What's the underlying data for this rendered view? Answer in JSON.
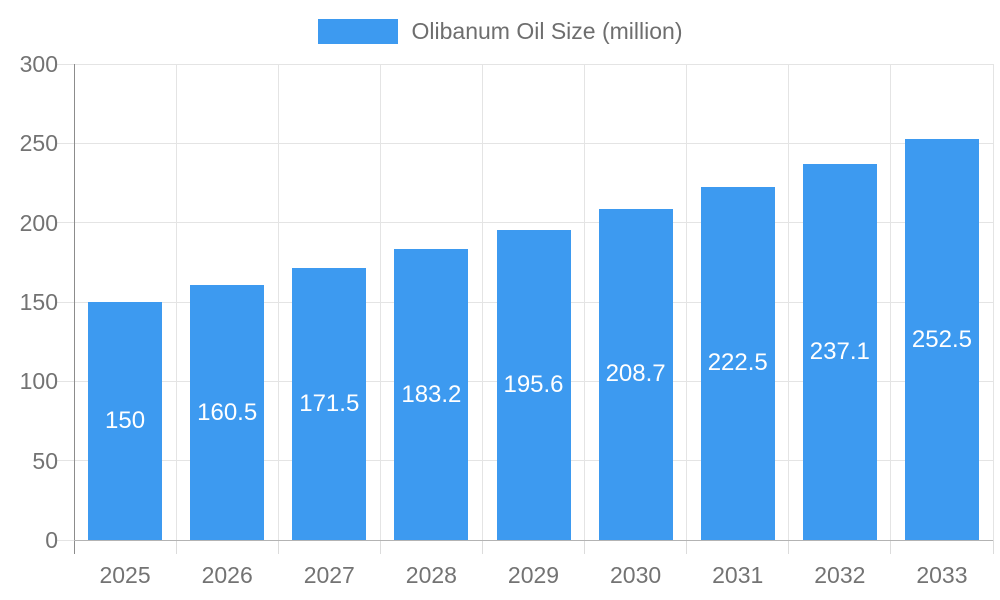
{
  "legend": {
    "label": "Olibanum Oil Size (million)"
  },
  "chart_data": {
    "type": "bar",
    "title": "",
    "xlabel": "",
    "ylabel": "",
    "legend": "Olibanum Oil Size (million)",
    "legend_position": "top",
    "grid": true,
    "categories": [
      "2025",
      "2026",
      "2027",
      "2028",
      "2029",
      "2030",
      "2031",
      "2032",
      "2033"
    ],
    "values": [
      150,
      160.5,
      171.5,
      183.2,
      195.6,
      208.7,
      222.5,
      237.1,
      252.5
    ],
    "value_labels": [
      "150",
      "160.5",
      "171.5",
      "183.2",
      "195.6",
      "208.7",
      "222.5",
      "237.1",
      "252.5"
    ],
    "ylim": [
      0,
      300
    ],
    "yticks": [
      0,
      50,
      100,
      150,
      200,
      250,
      300
    ],
    "colors": {
      "bar": "#3d9af0",
      "bar_label": "#ffffff",
      "axis_text": "#737373",
      "legend_text": "#6e6e6e",
      "grid": "#e4e4e4",
      "baseline": "#b3b3b3",
      "tick": "#dcdcdc",
      "axis_line": "#8c8c8c"
    }
  }
}
